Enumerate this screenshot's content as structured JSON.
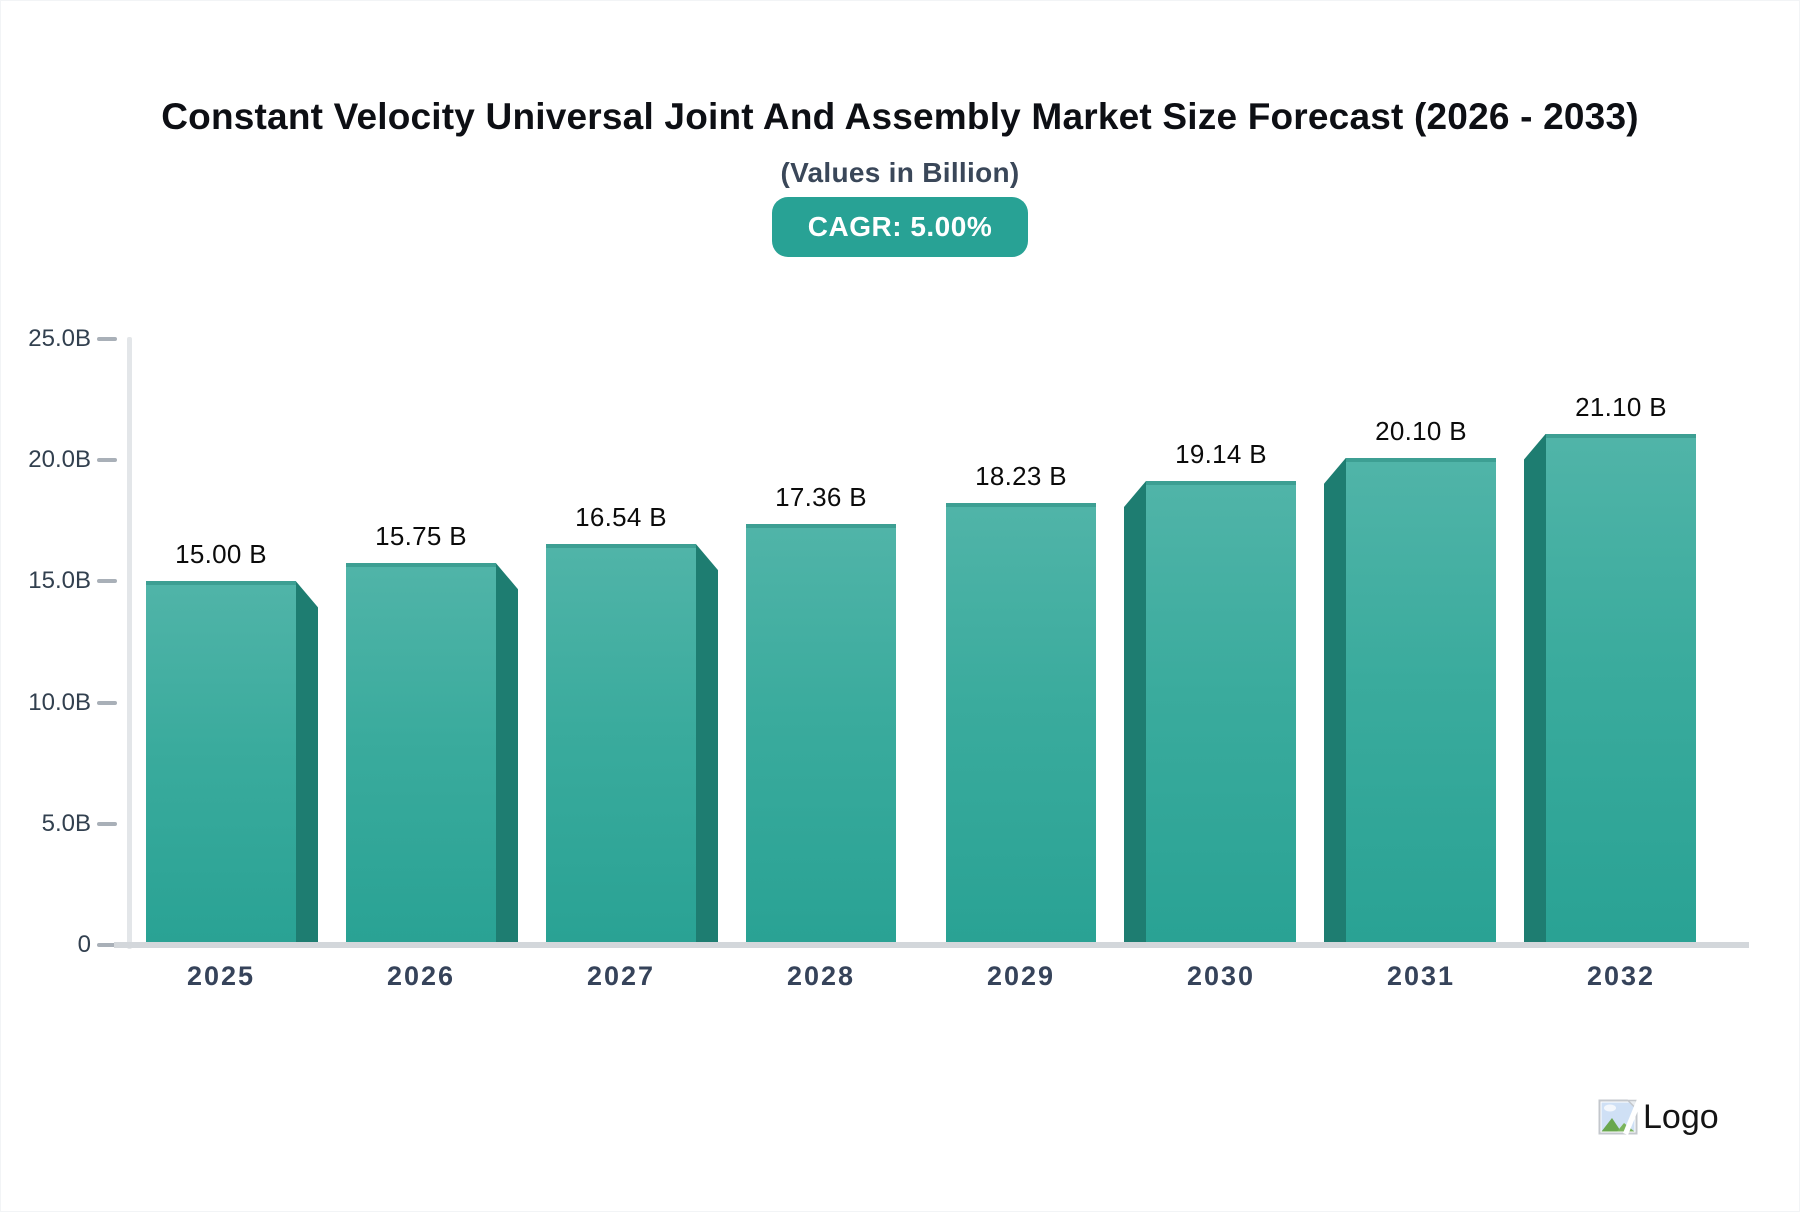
{
  "header": {
    "title": "Constant Velocity Universal Joint And Assembly Market Size Forecast (2026 - 2033)",
    "subtitle": "(Values in Billion)",
    "cagr_label": "CAGR: 5.00%"
  },
  "footer": {
    "logo_text": "Logo"
  },
  "colors": {
    "bar_face_top": "#50b4a8",
    "bar_face_bottom": "#29a294",
    "bar_side": "#1e7d71",
    "badge": "#28a295",
    "axis_line": "#e3e6e9",
    "baseline": "#d3d7db",
    "tick_label": "#32404f",
    "year_label": "#36435a",
    "value_label": "#0b0b0b"
  },
  "chart_data": {
    "type": "bar",
    "title": "Constant Velocity Universal Joint And Assembly Market Size Forecast (2026 - 2033)",
    "subtitle": "(Values in Billion)",
    "annotation": "CAGR: 5.00%",
    "unit": "Billion",
    "categories": [
      "2025",
      "2026",
      "2027",
      "2028",
      "2029",
      "2030",
      "2031",
      "2032"
    ],
    "values": [
      15.0,
      15.75,
      16.54,
      17.36,
      18.23,
      19.14,
      20.1,
      21.1
    ],
    "value_labels": [
      "15.00 B",
      "15.75 B",
      "16.54 B",
      "17.36 B",
      "18.23 B",
      "19.14 B",
      "20.10 B",
      "21.10 B"
    ],
    "y_ticks": [
      {
        "label": "25.0B",
        "value": 25
      },
      {
        "label": "20.0B",
        "value": 20
      },
      {
        "label": "15.0B",
        "value": 15
      },
      {
        "label": "10.0B",
        "value": 10
      },
      {
        "label": "5.0B",
        "value": 5
      },
      {
        "label": "0",
        "value": 0
      }
    ],
    "ylim": [
      0,
      25
    ],
    "grid": false,
    "legend": "none",
    "depth_side": [
      "right",
      "right",
      "right",
      "none",
      "none",
      "left",
      "left",
      "left"
    ]
  }
}
